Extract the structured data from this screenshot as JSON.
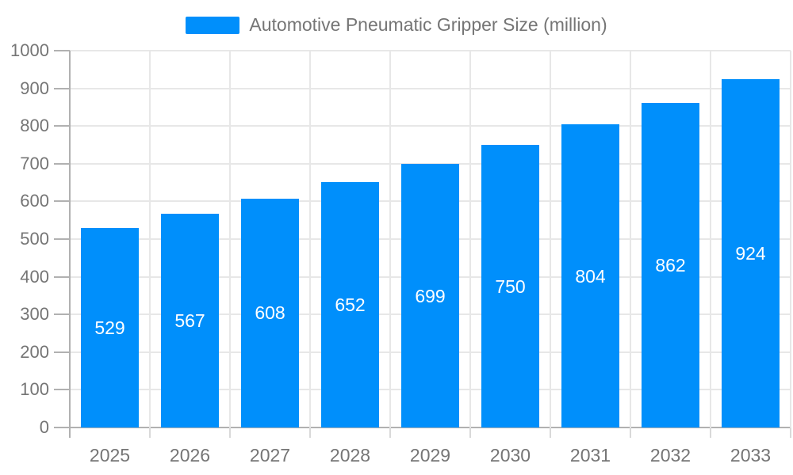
{
  "chart_data": {
    "type": "bar",
    "title": "Automotive Pneumatic Gripper Size (million)",
    "categories": [
      "2025",
      "2026",
      "2027",
      "2028",
      "2029",
      "2030",
      "2031",
      "2032",
      "2033"
    ],
    "values": [
      529,
      567,
      608,
      652,
      699,
      750,
      804,
      862,
      924
    ],
    "xlabel": "",
    "ylabel": "",
    "ylim": [
      0,
      1000
    ],
    "yticks": [
      0,
      100,
      200,
      300,
      400,
      500,
      600,
      700,
      800,
      900,
      1000
    ],
    "grid": true,
    "legend_position": "top-center",
    "value_labels": "inside-center",
    "colors": {
      "bar": "#008FFB",
      "grid_line": "#e7e7e7",
      "axis_line": "#b1b1b1",
      "axis_label": "#757575",
      "value_label": "#ffffff",
      "background": "#ffffff"
    }
  }
}
